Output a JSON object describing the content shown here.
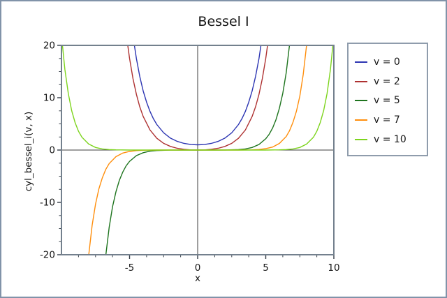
{
  "window": {
    "background": "#ffffff",
    "border_color": "#8193a9"
  },
  "chart_data": {
    "type": "line",
    "title": "Bessel I",
    "xlabel": "x",
    "ylabel": "cyl_bessel_i(v, x)",
    "xlim": [
      -10,
      10
    ],
    "ylim": [
      -20,
      20
    ],
    "x_ticks": [
      {
        "v": -5,
        "label": "-5"
      },
      {
        "v": 0,
        "label": "0"
      },
      {
        "v": 5,
        "label": "5"
      },
      {
        "v": 10,
        "label": "10"
      }
    ],
    "y_ticks": [
      {
        "v": 20,
        "label": "20"
      },
      {
        "v": 10,
        "label": "10"
      },
      {
        "v": 0,
        "label": "0"
      },
      {
        "v": -10,
        "label": "-10"
      },
      {
        "v": -20,
        "label": "-20"
      }
    ],
    "x_minor_step": 1.25,
    "y_minor_step": 2.5,
    "grid": false,
    "zero_axis_lines": true,
    "legend_position": "right",
    "frame_color": "#73808d",
    "axis_color": "#3c3c3c",
    "tick_color": "#333c46",
    "text_color": "#161616",
    "series": [
      {
        "name": "v = 0",
        "v": 0,
        "color": "#2c35b2",
        "points": [
          [
            -4.7,
            20.9
          ],
          [
            -4.5,
            17.48
          ],
          [
            -4.25,
            14.06
          ],
          [
            -4,
            11.3
          ],
          [
            -3.75,
            9.13
          ],
          [
            -3.5,
            7.38
          ],
          [
            -3.25,
            6.0
          ],
          [
            -3,
            4.88
          ],
          [
            -2.5,
            3.29
          ],
          [
            -2,
            2.28
          ],
          [
            -1.5,
            1.65
          ],
          [
            -1,
            1.27
          ],
          [
            -0.5,
            1.06
          ],
          [
            0,
            1
          ],
          [
            0.5,
            1.06
          ],
          [
            1,
            1.27
          ],
          [
            1.5,
            1.65
          ],
          [
            2,
            2.28
          ],
          [
            2.5,
            3.29
          ],
          [
            3,
            4.88
          ],
          [
            3.25,
            6.0
          ],
          [
            3.5,
            7.38
          ],
          [
            3.75,
            9.13
          ],
          [
            4,
            11.3
          ],
          [
            4.25,
            14.06
          ],
          [
            4.5,
            17.48
          ],
          [
            4.7,
            20.9
          ]
        ]
      },
      {
        "name": "v = 2",
        "v": 2,
        "color": "#ae3131",
        "points": [
          [
            -5.2,
            21.3
          ],
          [
            -5,
            17.51
          ],
          [
            -4.75,
            13.65
          ],
          [
            -4.5,
            10.64
          ],
          [
            -4.25,
            8.27
          ],
          [
            -4,
            6.42
          ],
          [
            -3.5,
            3.83
          ],
          [
            -3,
            2.25
          ],
          [
            -2.5,
            1.28
          ],
          [
            -2,
            0.69
          ],
          [
            -1.5,
            0.34
          ],
          [
            -1,
            0.14
          ],
          [
            -0.5,
            0.03
          ],
          [
            0,
            0
          ],
          [
            0.5,
            0.03
          ],
          [
            1,
            0.14
          ],
          [
            1.5,
            0.34
          ],
          [
            2,
            0.69
          ],
          [
            2.5,
            1.28
          ],
          [
            3,
            2.25
          ],
          [
            3.5,
            3.83
          ],
          [
            4,
            6.42
          ],
          [
            4.25,
            8.27
          ],
          [
            4.5,
            10.64
          ],
          [
            4.75,
            13.65
          ],
          [
            5,
            17.51
          ],
          [
            5.2,
            21.3
          ]
        ]
      },
      {
        "name": "v = 5",
        "v": 5,
        "color": "#1e741e",
        "points": [
          [
            -6.8,
            -21.3
          ],
          [
            -6.5,
            -14.78
          ],
          [
            -6.25,
            -10.85
          ],
          [
            -6,
            -7.97
          ],
          [
            -5.75,
            -5.79
          ],
          [
            -5.5,
            -4.2
          ],
          [
            -5.25,
            -3.01
          ],
          [
            -5,
            -2.16
          ],
          [
            -4.5,
            -1.07
          ],
          [
            -4,
            -0.5
          ],
          [
            -3.5,
            -0.21
          ],
          [
            -3,
            -0.09
          ],
          [
            -2,
            -0.01
          ],
          [
            -1,
            0
          ],
          [
            0,
            0
          ],
          [
            1,
            0
          ],
          [
            2,
            0.01
          ],
          [
            3,
            0.09
          ],
          [
            3.5,
            0.21
          ],
          [
            4,
            0.5
          ],
          [
            4.5,
            1.07
          ],
          [
            5,
            2.16
          ],
          [
            5.25,
            3.01
          ],
          [
            5.5,
            4.2
          ],
          [
            5.75,
            5.79
          ],
          [
            6,
            7.97
          ],
          [
            6.25,
            10.85
          ],
          [
            6.5,
            14.78
          ],
          [
            6.8,
            21.3
          ]
        ]
      },
      {
        "name": "v = 7",
        "v": 7,
        "color": "#ff8e0c",
        "points": [
          [
            -8.1,
            -22.2
          ],
          [
            -8,
            -20.1
          ],
          [
            -7.75,
            -14.4
          ],
          [
            -7.5,
            -10.32
          ],
          [
            -7.25,
            -7.4
          ],
          [
            -7,
            -5.31
          ],
          [
            -6.75,
            -3.71
          ],
          [
            -6.5,
            -2.59
          ],
          [
            -6,
            -1.26
          ],
          [
            -5.5,
            -0.57
          ],
          [
            -5,
            -0.26
          ],
          [
            -4.5,
            -0.1
          ],
          [
            -4,
            -0.04
          ],
          [
            -3,
            0
          ],
          [
            -2,
            0
          ],
          [
            0,
            0
          ],
          [
            2,
            0
          ],
          [
            3,
            0
          ],
          [
            4,
            0.04
          ],
          [
            4.5,
            0.1
          ],
          [
            5,
            0.26
          ],
          [
            5.5,
            0.57
          ],
          [
            6,
            1.26
          ],
          [
            6.5,
            2.59
          ],
          [
            6.75,
            3.71
          ],
          [
            7,
            5.31
          ],
          [
            7.25,
            7.4
          ],
          [
            7.5,
            10.32
          ],
          [
            7.75,
            14.4
          ],
          [
            8,
            20.1
          ],
          [
            8.1,
            22.2
          ]
        ]
      },
      {
        "name": "v = 10",
        "v": 10,
        "color": "#7dd41d",
        "points": [
          [
            -10,
            21.89
          ],
          [
            -9.75,
            15.38
          ],
          [
            -9.5,
            10.8
          ],
          [
            -9.25,
            7.53
          ],
          [
            -9,
            5.25
          ],
          [
            -8.75,
            3.59
          ],
          [
            -8.5,
            2.45
          ],
          [
            -8,
            1.15
          ],
          [
            -7.5,
            0.5
          ],
          [
            -7,
            0.22
          ],
          [
            -6.5,
            0.09
          ],
          [
            -6,
            0.04
          ],
          [
            -5,
            0
          ],
          [
            -4,
            0
          ],
          [
            0,
            0
          ],
          [
            4,
            0
          ],
          [
            5,
            0
          ],
          [
            6,
            0.04
          ],
          [
            6.5,
            0.09
          ],
          [
            7,
            0.22
          ],
          [
            7.5,
            0.5
          ],
          [
            8,
            1.15
          ],
          [
            8.5,
            2.45
          ],
          [
            8.75,
            3.59
          ],
          [
            9,
            5.25
          ],
          [
            9.25,
            7.53
          ],
          [
            9.5,
            10.8
          ],
          [
            9.75,
            15.38
          ],
          [
            10,
            21.89
          ]
        ]
      }
    ]
  }
}
